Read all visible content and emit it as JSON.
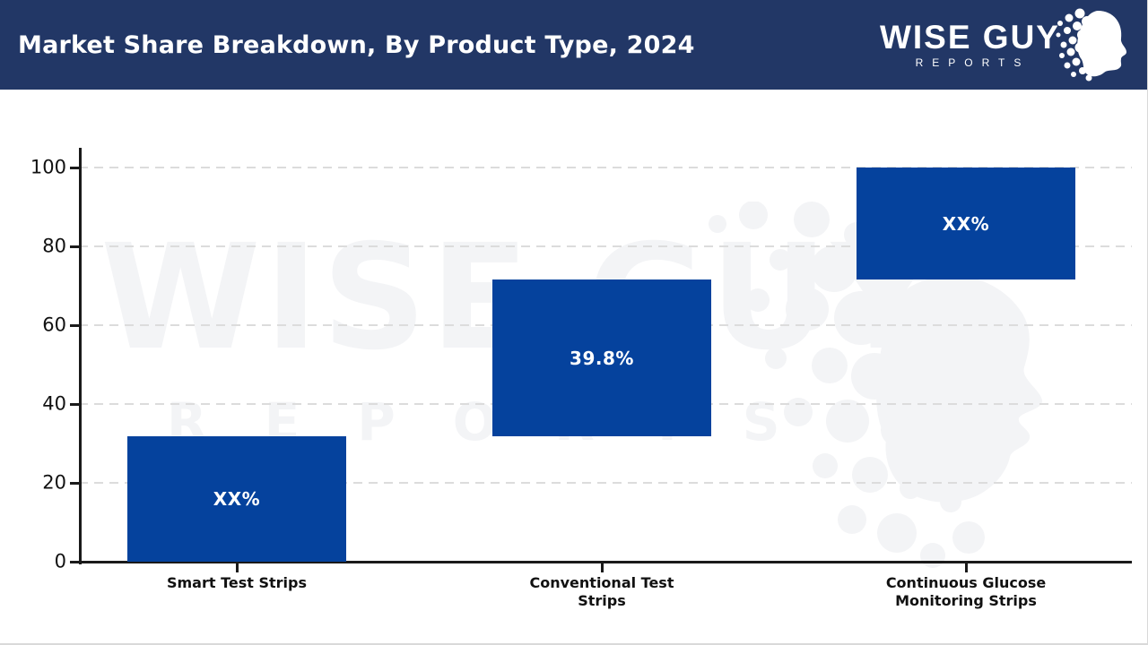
{
  "header": {
    "title": "Market Share Breakdown, By Product Type, 2024",
    "logo": {
      "name": "WISE GUY REPORTS",
      "line1": "WISE GUY",
      "line2": "REPORTS"
    }
  },
  "watermark": {
    "line1": "WISE GUY",
    "line2": "REPORTS"
  },
  "colors": {
    "header_bg": "#223766",
    "bar": "#05429d",
    "bar_label": "#ffffff",
    "grid": "#dcdcdc",
    "axis": "#1a1a1a",
    "watermark": "#f3f4f6"
  },
  "chart_data": {
    "type": "bar",
    "subtype": "waterfall (stacked market-share breakdown, values in %)",
    "title": "Market Share Breakdown, By Product Type, 2024",
    "categories": [
      "Smart Test Strips",
      "Conventional Test Strips",
      "Continuous Glucose Monitoring Strips"
    ],
    "category_lines": [
      [
        "Smart Test Strips"
      ],
      [
        "Conventional Test",
        "Strips"
      ],
      [
        "Continuous Glucose",
        "Monitoring Strips"
      ]
    ],
    "segments": [
      {
        "category": "Smart Test Strips",
        "start": 0,
        "end": 31.8,
        "label": "XX%"
      },
      {
        "category": "Conventional Test Strips",
        "start": 31.8,
        "end": 71.6,
        "label": "39.8%"
      },
      {
        "category": "Continuous Glucose Monitoring Strips",
        "start": 71.6,
        "end": 100,
        "label": "XX%"
      }
    ],
    "bar_labels": [
      "XX%",
      "39.8%",
      "XX%"
    ],
    "yticks": [
      0,
      20,
      40,
      60,
      80,
      100
    ],
    "ylim": [
      0,
      105
    ],
    "xlabel": "",
    "ylabel": "",
    "unit": "%",
    "grid": "horizontal dashed",
    "legend": "none"
  }
}
